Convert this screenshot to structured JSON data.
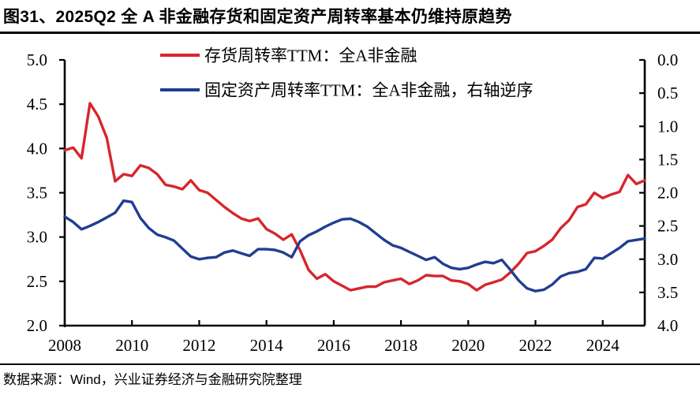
{
  "title": "图31、2025Q2 全 A 非金融存货和固定资产周转率基本仍维持原趋势",
  "source_note": "数据来源：Wind，兴业证券经济与金融研究院整理",
  "colors": {
    "series_red": "#d7262c",
    "series_blue": "#203e8f",
    "axis": "#000000",
    "background": "#ffffff"
  },
  "chart_data": {
    "type": "line",
    "title": "",
    "frequency": "quarterly",
    "x_start": "2008Q1",
    "x_end": "2025Q2",
    "x_tick_labels": [
      "2008",
      "2010",
      "2012",
      "2014",
      "2016",
      "2018",
      "2020",
      "2022",
      "2024"
    ],
    "grid": false,
    "legend_position": "top-center",
    "left_axis": {
      "min": 2.0,
      "max": 5.0,
      "ticks": [
        "5.0",
        "4.5",
        "4.0",
        "3.5",
        "3.0",
        "2.5",
        "2.0"
      ]
    },
    "right_axis": {
      "min": 0.0,
      "max": 4.0,
      "inverted": true,
      "ticks": [
        "0.0",
        "0.5",
        "1.0",
        "1.5",
        "2.0",
        "2.5",
        "3.0",
        "3.5",
        "4.0"
      ]
    },
    "series": [
      {
        "name": "存货周转率TTM：全A非金融",
        "axis": "left",
        "color": "#d7262c",
        "values": [
          3.98,
          4.01,
          3.89,
          4.51,
          4.36,
          4.12,
          3.63,
          3.71,
          3.69,
          3.81,
          3.78,
          3.71,
          3.59,
          3.57,
          3.54,
          3.64,
          3.53,
          3.5,
          3.42,
          3.34,
          3.27,
          3.21,
          3.18,
          3.21,
          3.09,
          3.04,
          2.97,
          3.03,
          2.85,
          2.63,
          2.53,
          2.58,
          2.5,
          2.45,
          2.4,
          2.42,
          2.44,
          2.44,
          2.49,
          2.51,
          2.53,
          2.47,
          2.51,
          2.57,
          2.56,
          2.56,
          2.51,
          2.5,
          2.47,
          2.4,
          2.46,
          2.49,
          2.52,
          2.6,
          2.7,
          2.82,
          2.84,
          2.9,
          2.97,
          3.1,
          3.19,
          3.34,
          3.37,
          3.5,
          3.44,
          3.48,
          3.51,
          3.7,
          3.6,
          3.64
        ]
      },
      {
        "name": "固定资产周转率TTM：全A非金融，右轴逆序",
        "axis": "right",
        "color": "#203e8f",
        "values": [
          2.36,
          2.44,
          2.55,
          2.5,
          2.44,
          2.37,
          2.3,
          2.12,
          2.14,
          2.38,
          2.53,
          2.63,
          2.67,
          2.72,
          2.84,
          2.96,
          3.0,
          2.98,
          2.97,
          2.9,
          2.87,
          2.91,
          2.95,
          2.85,
          2.85,
          2.86,
          2.9,
          2.97,
          2.73,
          2.64,
          2.58,
          2.51,
          2.45,
          2.4,
          2.39,
          2.44,
          2.51,
          2.61,
          2.71,
          2.79,
          2.83,
          2.89,
          2.95,
          3.01,
          2.97,
          3.07,
          3.13,
          3.15,
          3.13,
          3.08,
          3.04,
          3.06,
          3.01,
          3.16,
          3.32,
          3.44,
          3.48,
          3.46,
          3.38,
          3.26,
          3.21,
          3.19,
          3.15,
          2.98,
          2.99,
          2.91,
          2.83,
          2.73,
          2.71,
          2.69
        ]
      }
    ]
  }
}
